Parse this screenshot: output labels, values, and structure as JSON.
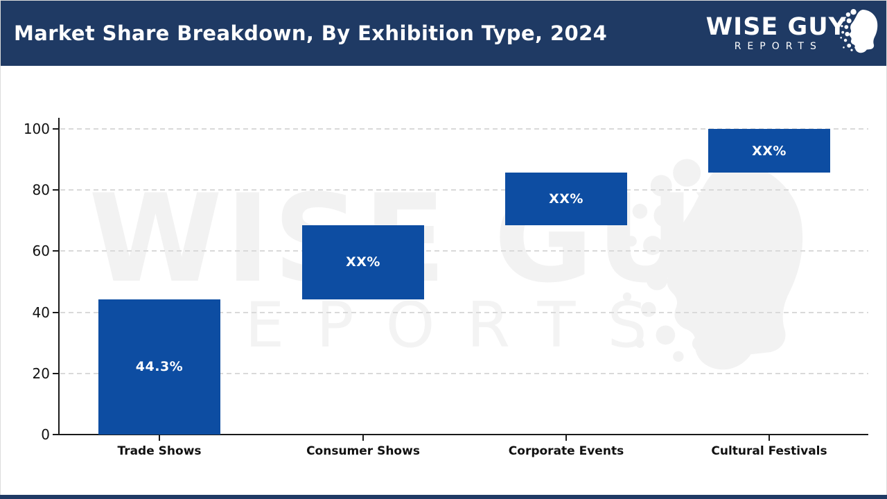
{
  "header": {
    "title": "Market Share Breakdown, By Exhibition Type, 2024",
    "logo": {
      "wordmark": "WISE GUY",
      "subtitle": "REPORTS"
    }
  },
  "watermark": {
    "wordmark": "WISE GUY",
    "subtitle": "REPORTS"
  },
  "colors": {
    "header_bg": "#1F3A64",
    "footer_bg": "#1F3A64",
    "bar": "#0D4DA2",
    "bar_label_text": "#FFFFFF",
    "axis": "#1A1A1A",
    "gridline": "#D9D9D9",
    "watermark": "#F2F2F2",
    "title_text": "#FFFFFF"
  },
  "chart_data": {
    "type": "bar",
    "subtype": "floating-waterfall",
    "title": "Market Share Breakdown, By Exhibition Type, 2024",
    "categories": [
      "Trade Shows",
      "Consumer Shows",
      "Corporate Events",
      "Cultural Festivals"
    ],
    "bars": [
      {
        "category": "Trade Shows",
        "start": 0,
        "end": 44.3,
        "label": "44.3%"
      },
      {
        "category": "Consumer Shows",
        "start": 44.3,
        "end": 68.5,
        "label": "XX%"
      },
      {
        "category": "Corporate Events",
        "start": 68.5,
        "end": 85.7,
        "label": "XX%"
      },
      {
        "category": "Cultural Festivals",
        "start": 85.7,
        "end": 100,
        "label": "XX%"
      }
    ],
    "ylim": [
      0,
      100
    ],
    "yticks": [
      0,
      20,
      40,
      60,
      80,
      100
    ],
    "xlabel": "",
    "ylabel": "",
    "grid": "horizontal-dashed",
    "legend": null,
    "bar_color": "#0D4DA2"
  }
}
